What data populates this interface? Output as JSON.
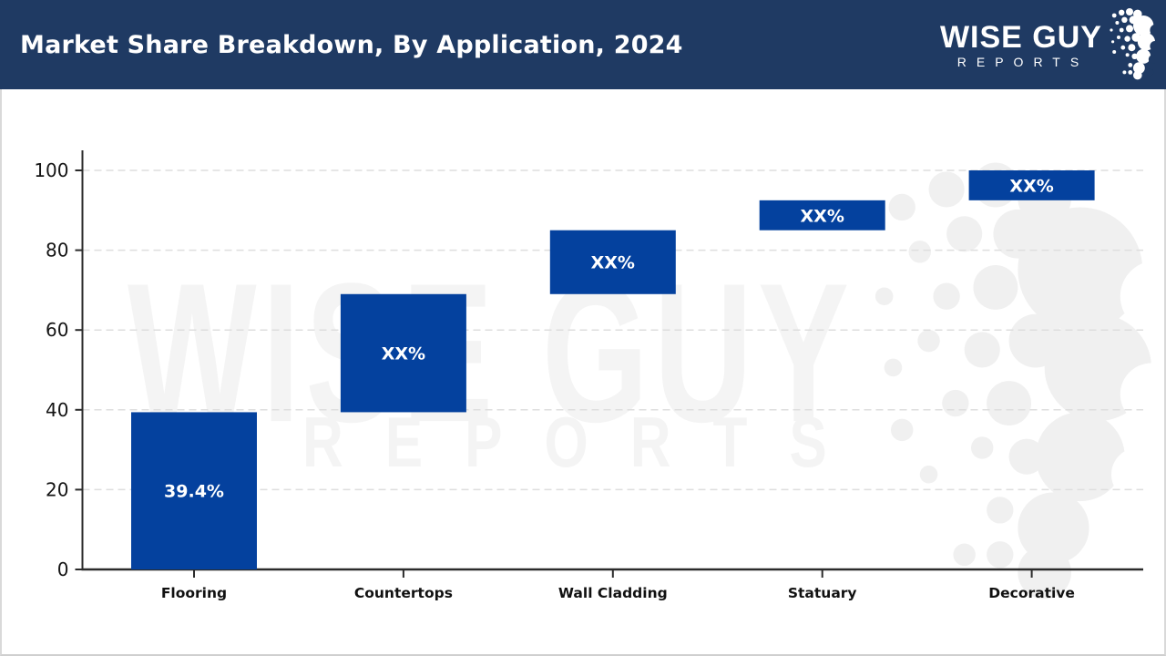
{
  "header": {
    "title": "Market Share Breakdown, By Application, 2024",
    "logo": {
      "line1": "WISE GUY",
      "line2": "REPORTS"
    }
  },
  "watermark": {
    "line1": "WISE GUY",
    "line2": "REPORTS"
  },
  "colors": {
    "header_bg": "#1f3a63",
    "bar": "#04419e",
    "grid": "#dedede",
    "axis": "#2b2b2b",
    "bar_label": "#ffffff",
    "watermark": "#f1f1f1"
  },
  "chart_data": {
    "type": "bar",
    "subtype": "waterfall",
    "title": "Market Share Breakdown, By Application, 2024",
    "categories": [
      "Flooring",
      "Countertops",
      "Wall Cladding",
      "Statuary",
      "Decorative"
    ],
    "segments": [
      {
        "category": "Flooring",
        "start": 0,
        "end": 39.4,
        "label": "39.4%"
      },
      {
        "category": "Countertops",
        "start": 39.4,
        "end": 69.0,
        "label": "XX%"
      },
      {
        "category": "Wall Cladding",
        "start": 69.0,
        "end": 85.0,
        "label": "XX%"
      },
      {
        "category": "Statuary",
        "start": 85.0,
        "end": 92.5,
        "label": "XX%"
      },
      {
        "category": "Decorative",
        "start": 92.5,
        "end": 100.0,
        "label": "XX%"
      }
    ],
    "xlabel": "",
    "ylabel": "",
    "ylim": [
      0,
      100
    ],
    "yticks": [
      0,
      20,
      40,
      60,
      80,
      100
    ],
    "grid": "horizontal-dashed",
    "legend": "none"
  }
}
